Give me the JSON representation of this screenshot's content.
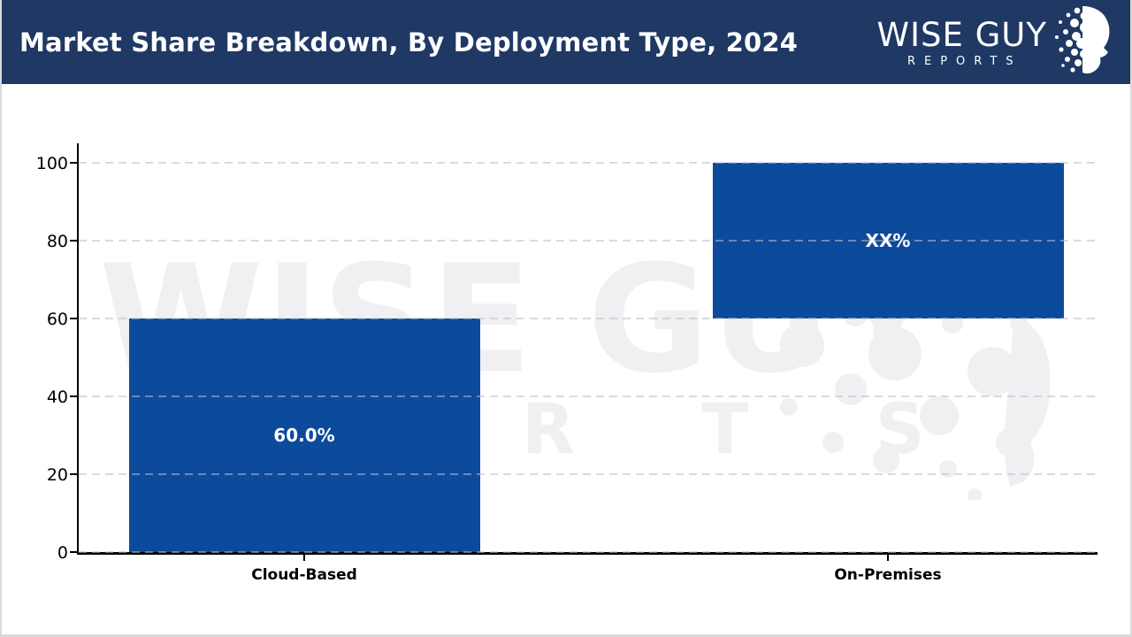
{
  "header": {
    "title": "Market Share Breakdown, By Deployment Type, 2024",
    "logo": {
      "name": "WISE GUY",
      "sub": "REPORTS"
    }
  },
  "watermark": {
    "line1": "WISE GUY",
    "line2": "R T S"
  },
  "chart_data": {
    "type": "bar",
    "title": "Market Share Breakdown, By Deployment Type, 2024",
    "categories": [
      "Cloud-Based",
      "On-Premises"
    ],
    "bars": [
      {
        "category": "Cloud-Based",
        "from": 0,
        "to": 60,
        "label": "60.0%"
      },
      {
        "category": "On-Premises",
        "from": 60,
        "to": 100,
        "label": "XX%"
      }
    ],
    "yticks": [
      0,
      20,
      40,
      60,
      80,
      100
    ],
    "ylim": [
      0,
      105
    ],
    "xlabel": "",
    "ylabel": "",
    "grid": "horizontal-dashed",
    "legend": "none",
    "bar_color": "#0c4a9c"
  },
  "colors": {
    "header_bg": "#1f3864",
    "bar": "#0c4a9c",
    "axis": "#000000",
    "grid": "#dfe2e8",
    "watermark": "#f0f0f2",
    "frame_border": "#d9d9d9"
  }
}
